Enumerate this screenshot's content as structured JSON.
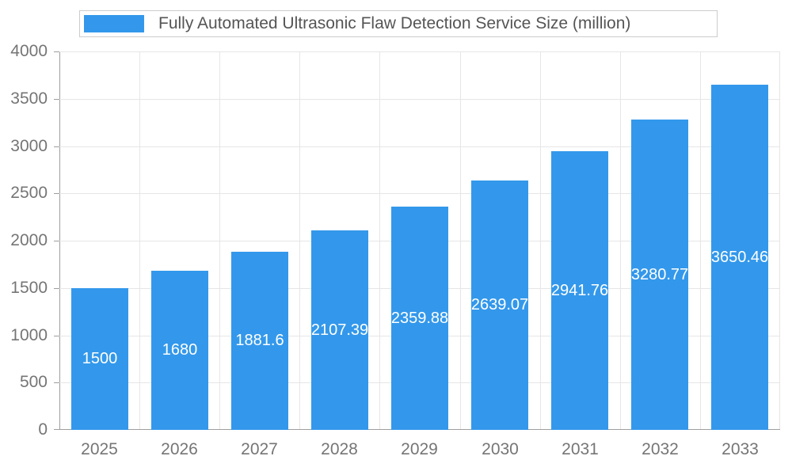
{
  "legend": {
    "label": "Fully Automated Ultrasonic Flaw Detection Service Size (million)"
  },
  "colors": {
    "bar": "#3398eb",
    "grid": "#e6e6e6",
    "axis": "#9e9e9e",
    "tick_text": "#757575",
    "value_text": "#ffffff",
    "legend_text": "#555555",
    "legend_border": "#cccccc"
  },
  "chart_data": {
    "type": "bar",
    "title": "Fully Automated Ultrasonic Flaw Detection Service Size (million)",
    "categories": [
      "2025",
      "2026",
      "2027",
      "2028",
      "2029",
      "2030",
      "2031",
      "2032",
      "2033"
    ],
    "values": [
      1500,
      1680,
      1881.6,
      2107.39,
      2359.88,
      2639.07,
      2941.76,
      3280.77,
      3650.46
    ],
    "value_labels": [
      "1500",
      "1680",
      "1881.6",
      "2107.39",
      "2359.88",
      "2639.07",
      "2941.76",
      "3280.77",
      "3650.46"
    ],
    "xlabel": "",
    "ylabel": "",
    "ylim": [
      0,
      4000
    ],
    "ytick_step": 500,
    "yticks": [
      0,
      500,
      1000,
      1500,
      2000,
      2500,
      3000,
      3500,
      4000
    ],
    "grid": true,
    "legend_position": "top",
    "value_label_position": "inside-center"
  }
}
